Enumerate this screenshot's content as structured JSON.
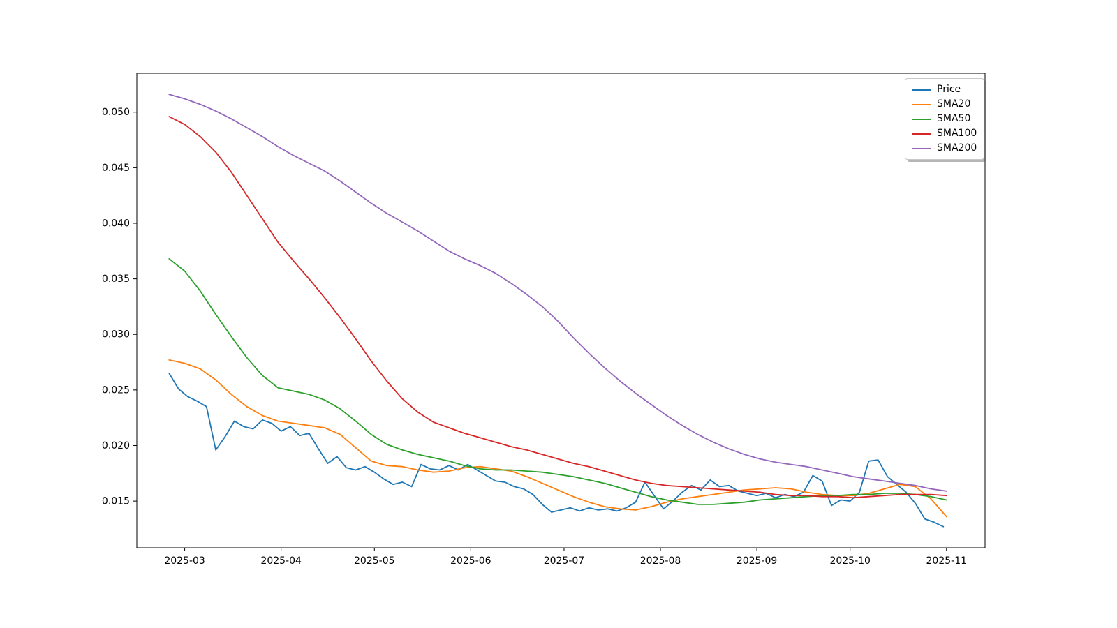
{
  "figure": {
    "background": "#ffffff",
    "axes_border_color": "#000000",
    "tick_color": "#000000",
    "legend_border_color": "#c8c8c8"
  },
  "chart_data": {
    "type": "line",
    "title": "",
    "xlabel": "",
    "ylabel": "",
    "grid": false,
    "x_unit": "days since 2025-02-24",
    "xlim": [
      -10.4,
      262.4
    ],
    "ylim": [
      0.0108,
      0.0535
    ],
    "x_ticks": {
      "positions": [
        5,
        36,
        66,
        97,
        127,
        158,
        189,
        219,
        250
      ],
      "labels": [
        "2025-03",
        "2025-04",
        "2025-05",
        "2025-06",
        "2025-07",
        "2025-08",
        "2025-09",
        "2025-10",
        "2025-11"
      ]
    },
    "y_ticks": {
      "positions": [
        0.015,
        0.02,
        0.025,
        0.03,
        0.035,
        0.04,
        0.045,
        0.05
      ],
      "labels": [
        "0.015",
        "0.020",
        "0.025",
        "0.030",
        "0.035",
        "0.040",
        "0.045",
        "0.050"
      ]
    },
    "legend": {
      "position": "upper right",
      "entries": [
        "Price",
        "SMA20",
        "SMA50",
        "SMA100",
        "SMA200"
      ]
    },
    "series": [
      {
        "name": "Price",
        "color": "#1f77b4",
        "x": [
          0,
          3,
          6,
          9,
          12,
          15,
          18,
          21,
          24,
          27,
          30,
          33,
          36,
          39,
          42,
          45,
          48,
          51,
          54,
          57,
          60,
          63,
          66,
          69,
          72,
          75,
          78,
          81,
          84,
          87,
          90,
          93,
          96,
          99,
          102,
          105,
          108,
          111,
          114,
          117,
          120,
          123,
          126,
          129,
          132,
          135,
          138,
          141,
          144,
          147,
          150,
          153,
          156,
          159,
          162,
          165,
          168,
          171,
          174,
          177,
          180,
          183,
          186,
          189,
          192,
          195,
          198,
          201,
          204,
          207,
          210,
          213,
          216,
          219,
          222,
          225,
          228,
          231,
          234,
          237,
          240,
          243,
          246,
          249
        ],
        "y": [
          0.0265,
          0.0251,
          0.0244,
          0.024,
          0.0235,
          0.0196,
          0.0208,
          0.0222,
          0.0217,
          0.0215,
          0.0223,
          0.022,
          0.0213,
          0.0217,
          0.0209,
          0.0211,
          0.0197,
          0.0184,
          0.019,
          0.018,
          0.0178,
          0.0181,
          0.0176,
          0.017,
          0.0165,
          0.0167,
          0.0163,
          0.0183,
          0.0179,
          0.0178,
          0.0182,
          0.0178,
          0.0183,
          0.0178,
          0.0173,
          0.0168,
          0.0167,
          0.0163,
          0.0161,
          0.0156,
          0.0147,
          0.014,
          0.0142,
          0.0144,
          0.0141,
          0.0144,
          0.0142,
          0.0143,
          0.0141,
          0.0144,
          0.0149,
          0.0167,
          0.0155,
          0.0143,
          0.015,
          0.0158,
          0.0164,
          0.016,
          0.0169,
          0.0163,
          0.0164,
          0.0159,
          0.0157,
          0.0155,
          0.0157,
          0.0153,
          0.0156,
          0.0154,
          0.0158,
          0.0173,
          0.0168,
          0.0146,
          0.0151,
          0.015,
          0.0158,
          0.0186,
          0.0187,
          0.0172,
          0.0165,
          0.0158,
          0.0148,
          0.0134,
          0.0131,
          0.0127
        ]
      },
      {
        "name": "SMA20",
        "color": "#ff7f0e",
        "x": [
          0,
          5,
          10,
          15,
          20,
          25,
          30,
          35,
          40,
          45,
          50,
          55,
          60,
          65,
          70,
          75,
          80,
          85,
          90,
          95,
          100,
          105,
          110,
          115,
          120,
          125,
          130,
          135,
          140,
          145,
          150,
          155,
          160,
          165,
          170,
          175,
          180,
          185,
          190,
          195,
          200,
          205,
          210,
          215,
          220,
          225,
          230,
          235,
          240,
          245,
          250
        ],
        "y": [
          0.0277,
          0.0274,
          0.0269,
          0.0259,
          0.0246,
          0.0235,
          0.0227,
          0.0222,
          0.022,
          0.0218,
          0.0216,
          0.021,
          0.0198,
          0.0186,
          0.0182,
          0.0181,
          0.0178,
          0.0176,
          0.0177,
          0.018,
          0.0181,
          0.0179,
          0.0177,
          0.0172,
          0.0166,
          0.016,
          0.0154,
          0.0149,
          0.0145,
          0.0143,
          0.0142,
          0.0145,
          0.0149,
          0.0152,
          0.0154,
          0.0156,
          0.0158,
          0.016,
          0.0161,
          0.0162,
          0.0161,
          0.0158,
          0.0156,
          0.0155,
          0.0155,
          0.0157,
          0.0161,
          0.0165,
          0.0163,
          0.0152,
          0.0136
        ]
      },
      {
        "name": "SMA50",
        "color": "#2ca02c",
        "x": [
          0,
          5,
          10,
          15,
          20,
          25,
          30,
          35,
          40,
          45,
          50,
          55,
          60,
          65,
          70,
          75,
          80,
          85,
          90,
          95,
          100,
          105,
          110,
          115,
          120,
          125,
          130,
          135,
          140,
          145,
          150,
          155,
          160,
          165,
          170,
          175,
          180,
          185,
          190,
          195,
          200,
          205,
          210,
          215,
          220,
          225,
          230,
          235,
          240,
          245,
          250
        ],
        "y": [
          0.0368,
          0.0357,
          0.0339,
          0.0318,
          0.0298,
          0.0279,
          0.0263,
          0.0252,
          0.0249,
          0.0246,
          0.0241,
          0.0233,
          0.0222,
          0.021,
          0.0201,
          0.0196,
          0.0192,
          0.0189,
          0.0186,
          0.0182,
          0.0179,
          0.0178,
          0.0178,
          0.0177,
          0.0176,
          0.0174,
          0.0172,
          0.0169,
          0.0166,
          0.0162,
          0.0158,
          0.0154,
          0.0151,
          0.0149,
          0.0147,
          0.0147,
          0.0148,
          0.0149,
          0.0151,
          0.0152,
          0.0153,
          0.0154,
          0.0155,
          0.0155,
          0.0156,
          0.0156,
          0.0157,
          0.0157,
          0.0156,
          0.0154,
          0.0151
        ]
      },
      {
        "name": "SMA100",
        "color": "#d62728",
        "x": [
          0,
          5,
          10,
          15,
          20,
          25,
          30,
          35,
          40,
          45,
          50,
          55,
          60,
          65,
          70,
          75,
          80,
          85,
          90,
          95,
          100,
          105,
          110,
          115,
          120,
          125,
          130,
          135,
          140,
          145,
          150,
          155,
          160,
          165,
          170,
          175,
          180,
          185,
          190,
          195,
          200,
          205,
          210,
          215,
          220,
          225,
          230,
          235,
          240,
          245,
          250
        ],
        "y": [
          0.0496,
          0.0489,
          0.0478,
          0.0464,
          0.0446,
          0.0425,
          0.0404,
          0.0383,
          0.0366,
          0.035,
          0.0333,
          0.0315,
          0.0296,
          0.0276,
          0.0258,
          0.0242,
          0.023,
          0.0221,
          0.0216,
          0.0211,
          0.0207,
          0.0203,
          0.0199,
          0.0196,
          0.0192,
          0.0188,
          0.0184,
          0.0181,
          0.0177,
          0.0173,
          0.0169,
          0.0166,
          0.0164,
          0.0163,
          0.0162,
          0.0161,
          0.016,
          0.0159,
          0.0158,
          0.0156,
          0.0155,
          0.0155,
          0.0154,
          0.0154,
          0.0153,
          0.0154,
          0.0155,
          0.0156,
          0.0156,
          0.0156,
          0.0155
        ]
      },
      {
        "name": "SMA200",
        "color": "#9467bd",
        "x": [
          0,
          5,
          10,
          15,
          20,
          25,
          30,
          35,
          40,
          45,
          50,
          55,
          60,
          65,
          70,
          75,
          80,
          85,
          90,
          95,
          100,
          105,
          110,
          115,
          120,
          125,
          130,
          135,
          140,
          145,
          150,
          155,
          160,
          165,
          170,
          175,
          180,
          185,
          190,
          195,
          200,
          205,
          210,
          215,
          220,
          225,
          230,
          235,
          240,
          245,
          250
        ],
        "y": [
          0.0516,
          0.0512,
          0.0507,
          0.0501,
          0.0494,
          0.0486,
          0.0478,
          0.0469,
          0.0461,
          0.0454,
          0.0447,
          0.0438,
          0.0428,
          0.0418,
          0.0409,
          0.0401,
          0.0393,
          0.0384,
          0.0375,
          0.0368,
          0.0362,
          0.0355,
          0.0346,
          0.0336,
          0.0325,
          0.0312,
          0.0297,
          0.0283,
          0.027,
          0.0258,
          0.0247,
          0.0237,
          0.0227,
          0.0218,
          0.021,
          0.0203,
          0.0197,
          0.0192,
          0.0188,
          0.0185,
          0.0183,
          0.0181,
          0.0178,
          0.0175,
          0.0172,
          0.017,
          0.0168,
          0.0166,
          0.0164,
          0.0161,
          0.0159
        ]
      }
    ]
  }
}
